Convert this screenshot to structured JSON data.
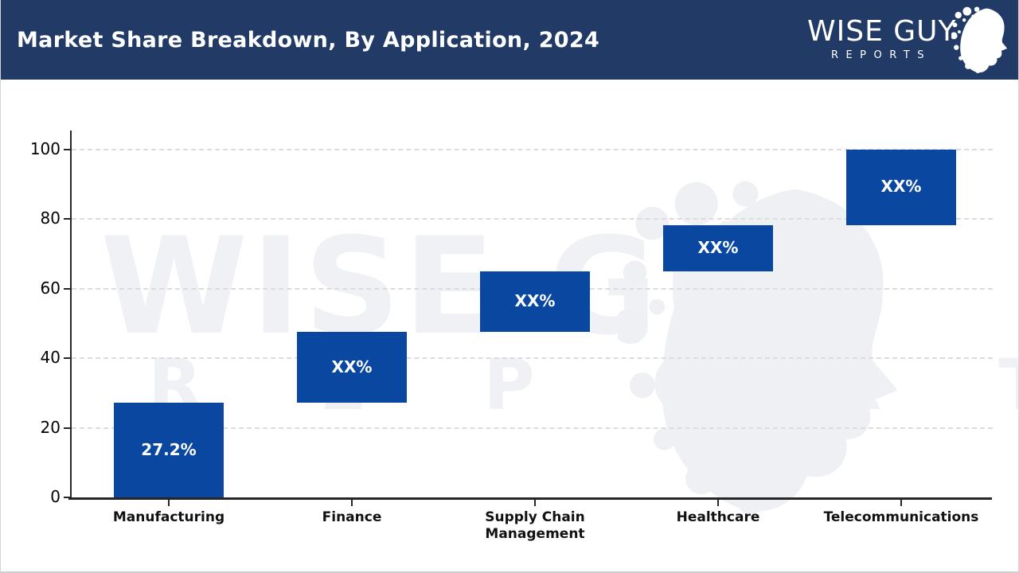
{
  "header": {
    "title": "Market Share Breakdown, By Application, 2024",
    "bg_color": "#213A66",
    "logo": {
      "line1": "WISE GUY",
      "line2": "REPORTS"
    }
  },
  "watermark": {
    "line1": "WISE GUY",
    "line2": "R E P O R T S"
  },
  "chart_data": {
    "type": "bar",
    "subtype": "waterfall",
    "title": "Market Share Breakdown, By Application, 2024",
    "categories": [
      "Manufacturing",
      "Finance",
      "Supply Chain Management",
      "Healthcare",
      "Telecommunications"
    ],
    "segments": [
      {
        "category": "Manufacturing",
        "start": 0,
        "end": 27.2,
        "label": "27.2%"
      },
      {
        "category": "Finance",
        "start": 27.2,
        "end": 47.5,
        "label": "XX%"
      },
      {
        "category": "Supply Chain Management",
        "start": 47.5,
        "end": 64.9,
        "label": "XX%"
      },
      {
        "category": "Healthcare",
        "start": 64.9,
        "end": 78.2,
        "label": "XX%"
      },
      {
        "category": "Telecommunications",
        "start": 78.2,
        "end": 100,
        "label": "XX%"
      }
    ],
    "yticks": [
      0,
      20,
      40,
      60,
      80,
      100
    ],
    "ylim": [
      0,
      100
    ],
    "xlabel": "",
    "ylabel": "",
    "bar_color": "#0A47A1",
    "value_label_color": "#FFFFFF",
    "grid": "horizontal-dashed",
    "legend": "none"
  }
}
